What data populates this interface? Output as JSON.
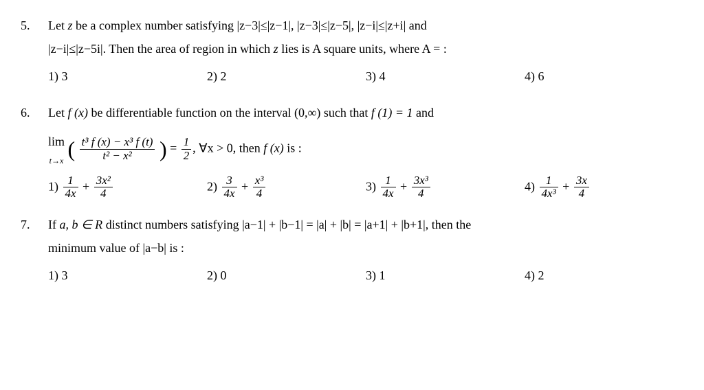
{
  "q5": {
    "number": "5.",
    "text_part1": "Let ",
    "z": "z",
    "text_part2": " be a complex number satisfying ",
    "ineq1": "|z−3|≤|z−1|, |z−3|≤|z−5|, |z−i|≤|z+i|",
    "text_and": " and",
    "ineq2": "|z−i|≤|z−5i|",
    "text_part3": ". Then the area of region in which ",
    "zvar": "z",
    "text_part4": " lies is A square units, where A = :",
    "options": {
      "o1": "1) 3",
      "o2": "2) 2",
      "o3": "3) 4",
      "o4": "4) 6"
    }
  },
  "q6": {
    "number": "6.",
    "line1_a": "Let ",
    "fx": "f (x)",
    "line1_b": " be differentiable function on the interval ",
    "interval": "(0,∞)",
    "line1_c": " such that ",
    "f1": "f (1) = 1",
    "line1_d": " and",
    "lim_label": "lim",
    "lim_sub": "t→x",
    "frac_num": "t³ f (x) − x³ f (t)",
    "frac_den": "t² − x²",
    "eq_half_num": "1",
    "eq_half_den": "2",
    "forall": ", ∀x > 0,",
    "then": " then ",
    "fx2": "f (x)",
    "is": " is :",
    "opt1": {
      "label": "1) ",
      "a_num": "1",
      "a_den": "4x",
      "plus": " + ",
      "b_num": "3x²",
      "b_den": "4"
    },
    "opt2": {
      "label": "2) ",
      "a_num": "3",
      "a_den": "4x",
      "plus": " + ",
      "b_num": "x³",
      "b_den": "4"
    },
    "opt3": {
      "label": "3) ",
      "a_num": "1",
      "a_den": "4x",
      "plus": " + ",
      "b_num": "3x³",
      "b_den": "4"
    },
    "opt4": {
      "label": "4) ",
      "a_num": "1",
      "a_den": "4x³",
      "plus": " + ",
      "b_num": "3x",
      "b_den": "4"
    }
  },
  "q7": {
    "number": "7.",
    "line1_a": "If ",
    "ab": "a, b ∈ R",
    "line1_b": " distinct numbers satisfying ",
    "eq": "|a−1| + |b−1| = |a| + |b| = |a+1| + |b+1|",
    "line1_c": ", then the",
    "line2_a": "minimum value of ",
    "absab": "|a−b|",
    "line2_b": " is :",
    "options": {
      "o1": "1) 3",
      "o2": "2) 0",
      "o3": "3) 1",
      "o4": "4) 2"
    }
  }
}
